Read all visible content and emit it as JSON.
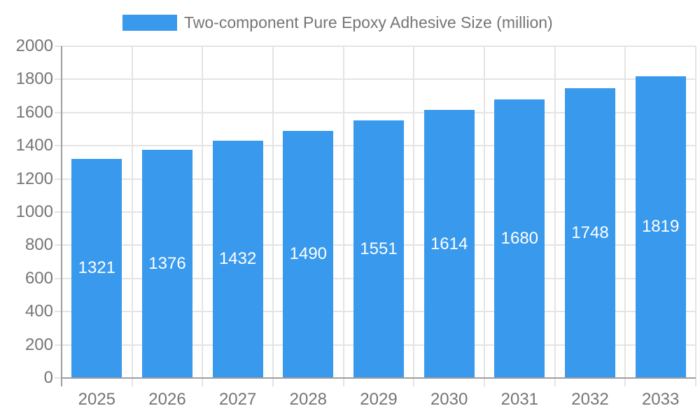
{
  "legend": {
    "label": "Two-component Pure Epoxy Adhesive Size (million)",
    "swatch_color": "#3999ED"
  },
  "chart_data": {
    "type": "bar",
    "title": "Two-component Pure Epoxy Adhesive Size (million)",
    "categories": [
      "2025",
      "2026",
      "2027",
      "2028",
      "2029",
      "2030",
      "2031",
      "2032",
      "2033"
    ],
    "values": [
      1321,
      1376,
      1432,
      1490,
      1551,
      1614,
      1680,
      1748,
      1819
    ],
    "xlabel": "",
    "ylabel": "",
    "ylim": [
      0,
      2000
    ],
    "yticks": [
      0,
      200,
      400,
      600,
      800,
      1000,
      1200,
      1400,
      1600,
      1800,
      2000
    ],
    "grid": true,
    "legend_position": "top",
    "bar_color": "#3999ED",
    "value_label_color": "#ffffff"
  },
  "colors": {
    "background": "#ffffff",
    "axis_line": "#9e9e9e",
    "gridline": "#e4e4e4",
    "axis_label": "#757575",
    "legend_text": "#757575"
  }
}
